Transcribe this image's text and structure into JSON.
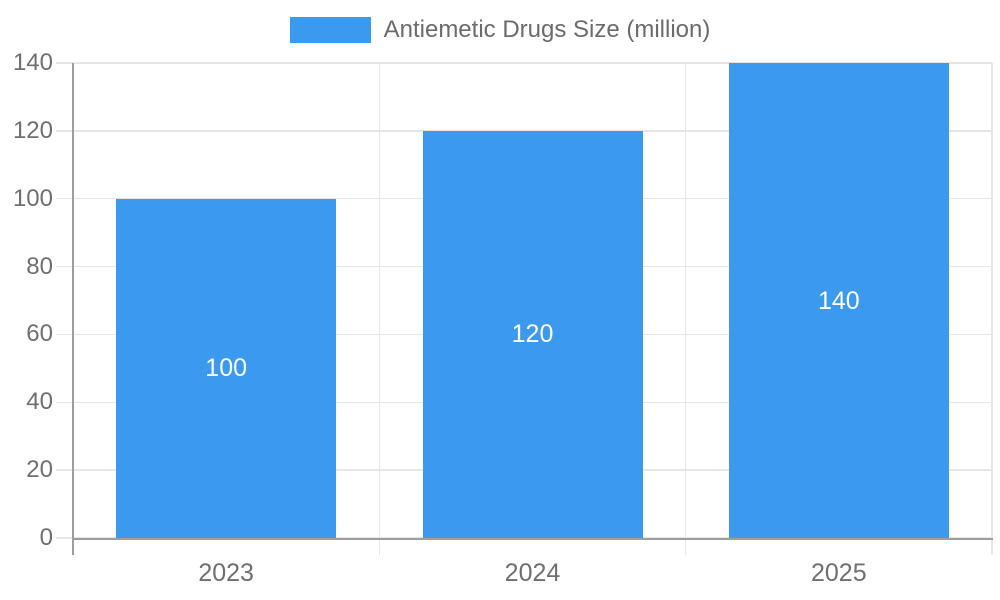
{
  "chart_data": {
    "type": "bar",
    "title": "",
    "xlabel": "",
    "ylabel": "",
    "categories": [
      "2023",
      "2024",
      "2025"
    ],
    "series": [
      {
        "name": "Antiemetic Drugs Size (million)",
        "values": [
          100,
          120,
          140
        ]
      }
    ],
    "data_labels_shown": true,
    "ylim": [
      0,
      140
    ],
    "yticks": [
      0,
      20,
      40,
      60,
      80,
      100,
      120,
      140
    ],
    "grid": true,
    "legend_position": "top-center"
  },
  "legend": {
    "label": "Antiemetic Drugs Size (million)"
  },
  "colors": {
    "bar": "#3B99EE",
    "grid": "#E6E6E6",
    "axis": "#9E9E9E",
    "axis_label_text": "#6F6F6F",
    "legend_text": "#6B6B6B",
    "bar_label_text": "#FFFFFF",
    "background": "#FFFFFF"
  }
}
